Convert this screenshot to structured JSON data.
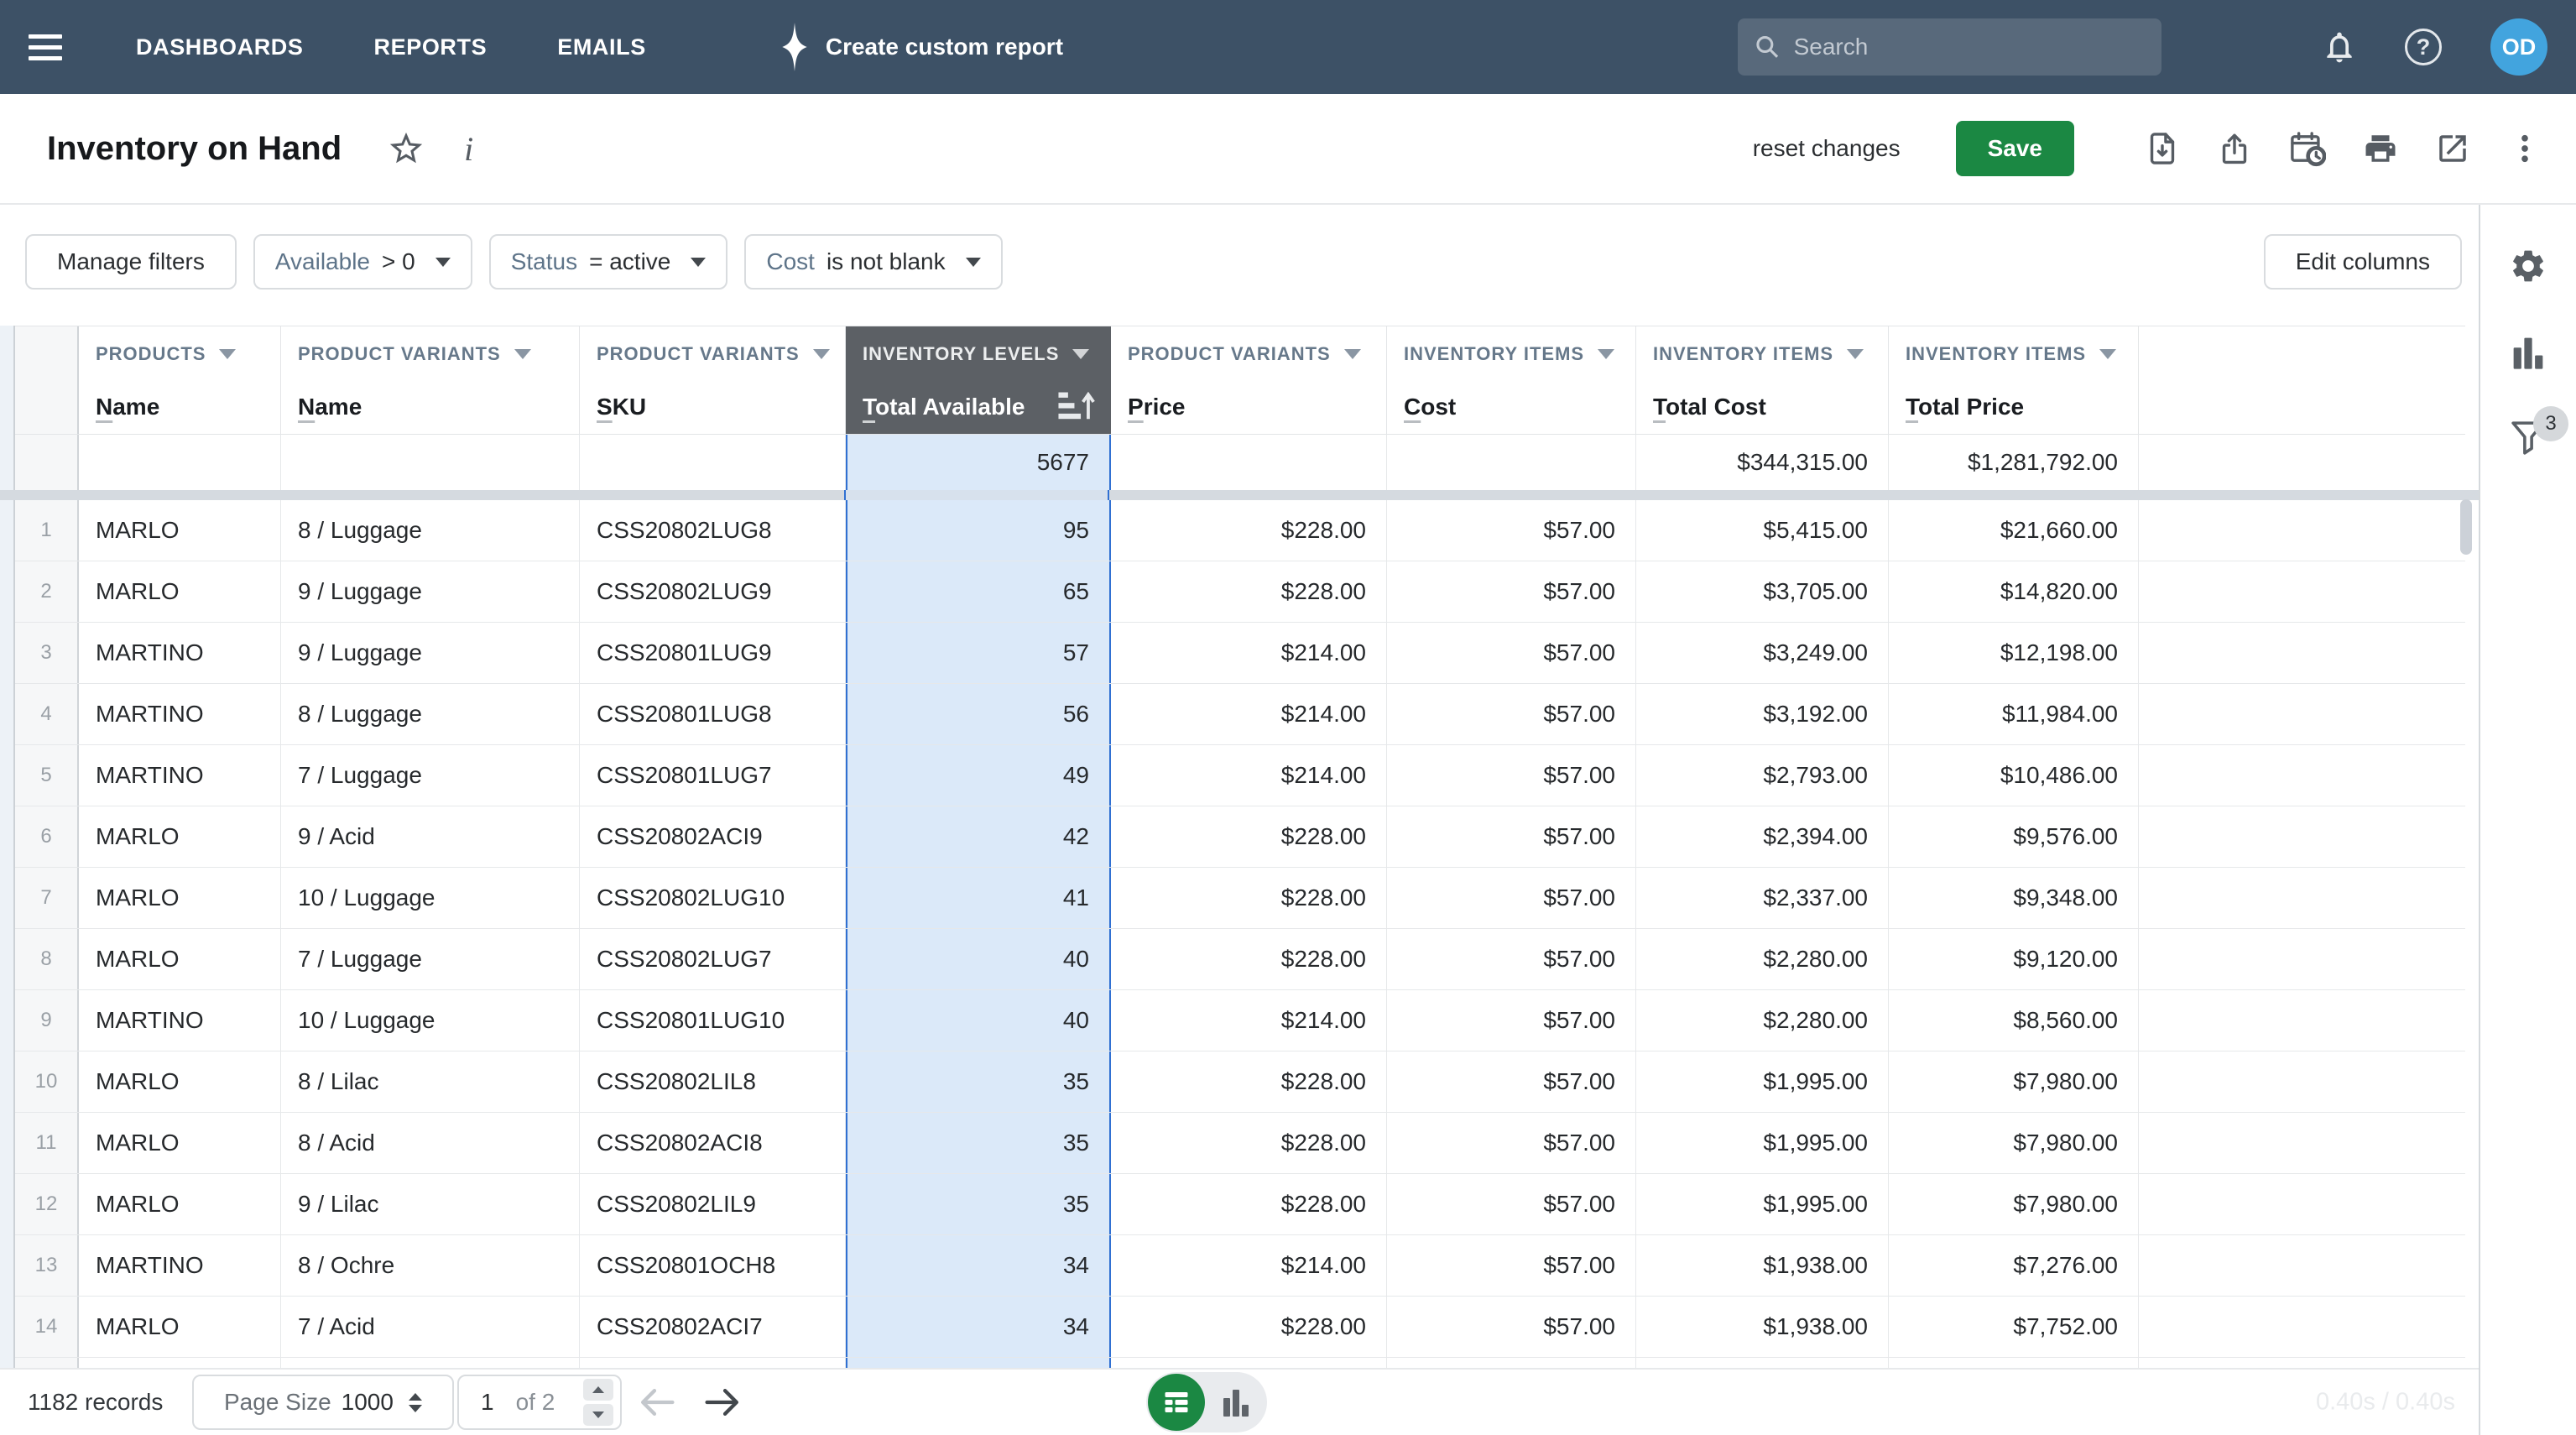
{
  "navbar": {
    "links": [
      {
        "label": "DASHBOARDS"
      },
      {
        "label": "REPORTS"
      },
      {
        "label": "EMAILS"
      }
    ],
    "create_report_label": "Create custom report",
    "search_placeholder": "Search",
    "help_glyph": "?",
    "avatar_initials": "OD"
  },
  "title_bar": {
    "title": "Inventory on Hand",
    "info_glyph": "i",
    "reset_label": "reset changes",
    "save_label": "Save"
  },
  "filter_bar": {
    "manage_label": "Manage filters",
    "chips": [
      {
        "field": "Available",
        "condition": "> 0"
      },
      {
        "field": "Status",
        "condition": "= active"
      },
      {
        "field": "Cost",
        "condition": "is not blank"
      }
    ],
    "edit_columns_label": "Edit columns"
  },
  "rail": {
    "filter_badge": "3"
  },
  "table": {
    "columns": [
      {
        "group": "",
        "name": ""
      },
      {
        "group": "PRODUCTS",
        "name": "Name"
      },
      {
        "group": "PRODUCT VARIANTS",
        "name": "Name"
      },
      {
        "group": "PRODUCT VARIANTS",
        "name": "SKU"
      },
      {
        "group": "INVENTORY LEVELS",
        "name": "Total Available",
        "selected": true,
        "sorted": "descending"
      },
      {
        "group": "PRODUCT VARIANTS",
        "name": "Price"
      },
      {
        "group": "INVENTORY ITEMS",
        "name": "Cost"
      },
      {
        "group": "INVENTORY ITEMS",
        "name": "Total Cost"
      },
      {
        "group": "INVENTORY ITEMS",
        "name": "Total Price"
      }
    ],
    "summary": [
      "",
      "",
      "",
      "",
      "5677",
      "",
      "",
      "$344,315.00",
      "$1,281,792.00"
    ],
    "rows": [
      [
        "1",
        "MARLO",
        "8 / Luggage",
        "CSS20802LUG8",
        "95",
        "$228.00",
        "$57.00",
        "$5,415.00",
        "$21,660.00"
      ],
      [
        "2",
        "MARLO",
        "9 / Luggage",
        "CSS20802LUG9",
        "65",
        "$228.00",
        "$57.00",
        "$3,705.00",
        "$14,820.00"
      ],
      [
        "3",
        "MARTINO",
        "9 / Luggage",
        "CSS20801LUG9",
        "57",
        "$214.00",
        "$57.00",
        "$3,249.00",
        "$12,198.00"
      ],
      [
        "4",
        "MARTINO",
        "8 / Luggage",
        "CSS20801LUG8",
        "56",
        "$214.00",
        "$57.00",
        "$3,192.00",
        "$11,984.00"
      ],
      [
        "5",
        "MARTINO",
        "7 / Luggage",
        "CSS20801LUG7",
        "49",
        "$214.00",
        "$57.00",
        "$2,793.00",
        "$10,486.00"
      ],
      [
        "6",
        "MARLO",
        "9 / Acid",
        "CSS20802ACI9",
        "42",
        "$228.00",
        "$57.00",
        "$2,394.00",
        "$9,576.00"
      ],
      [
        "7",
        "MARLO",
        "10 / Luggage",
        "CSS20802LUG10",
        "41",
        "$228.00",
        "$57.00",
        "$2,337.00",
        "$9,348.00"
      ],
      [
        "8",
        "MARLO",
        "7 / Luggage",
        "CSS20802LUG7",
        "40",
        "$228.00",
        "$57.00",
        "$2,280.00",
        "$9,120.00"
      ],
      [
        "9",
        "MARTINO",
        "10 / Luggage",
        "CSS20801LUG10",
        "40",
        "$214.00",
        "$57.00",
        "$2,280.00",
        "$8,560.00"
      ],
      [
        "10",
        "MARLO",
        "8 / Lilac",
        "CSS20802LIL8",
        "35",
        "$228.00",
        "$57.00",
        "$1,995.00",
        "$7,980.00"
      ],
      [
        "11",
        "MARLO",
        "8 / Acid",
        "CSS20802ACI8",
        "35",
        "$228.00",
        "$57.00",
        "$1,995.00",
        "$7,980.00"
      ],
      [
        "12",
        "MARLO",
        "9 / Lilac",
        "CSS20802LIL9",
        "35",
        "$228.00",
        "$57.00",
        "$1,995.00",
        "$7,980.00"
      ],
      [
        "13",
        "MARTINO",
        "8 / Ochre",
        "CSS20801OCH8",
        "34",
        "$214.00",
        "$57.00",
        "$1,938.00",
        "$7,276.00"
      ],
      [
        "14",
        "MARLO",
        "7 / Acid",
        "CSS20802ACI7",
        "34",
        "$228.00",
        "$57.00",
        "$1,938.00",
        "$7,752.00"
      ]
    ]
  },
  "footer": {
    "records": "1182 records",
    "page_size_prefix": "Page Size",
    "page_size_value": "1000",
    "page_value": "1",
    "page_of": "of 2",
    "timing": "0.40s / 0.40s"
  },
  "colors": {
    "navbar": "#3d5166",
    "accent_green": "#1b8843",
    "highlight_bg": "#dbe9f9",
    "highlight_border": "#3070d2",
    "selected_header": "#5c6065",
    "avatar_blue": "#42a4de"
  }
}
